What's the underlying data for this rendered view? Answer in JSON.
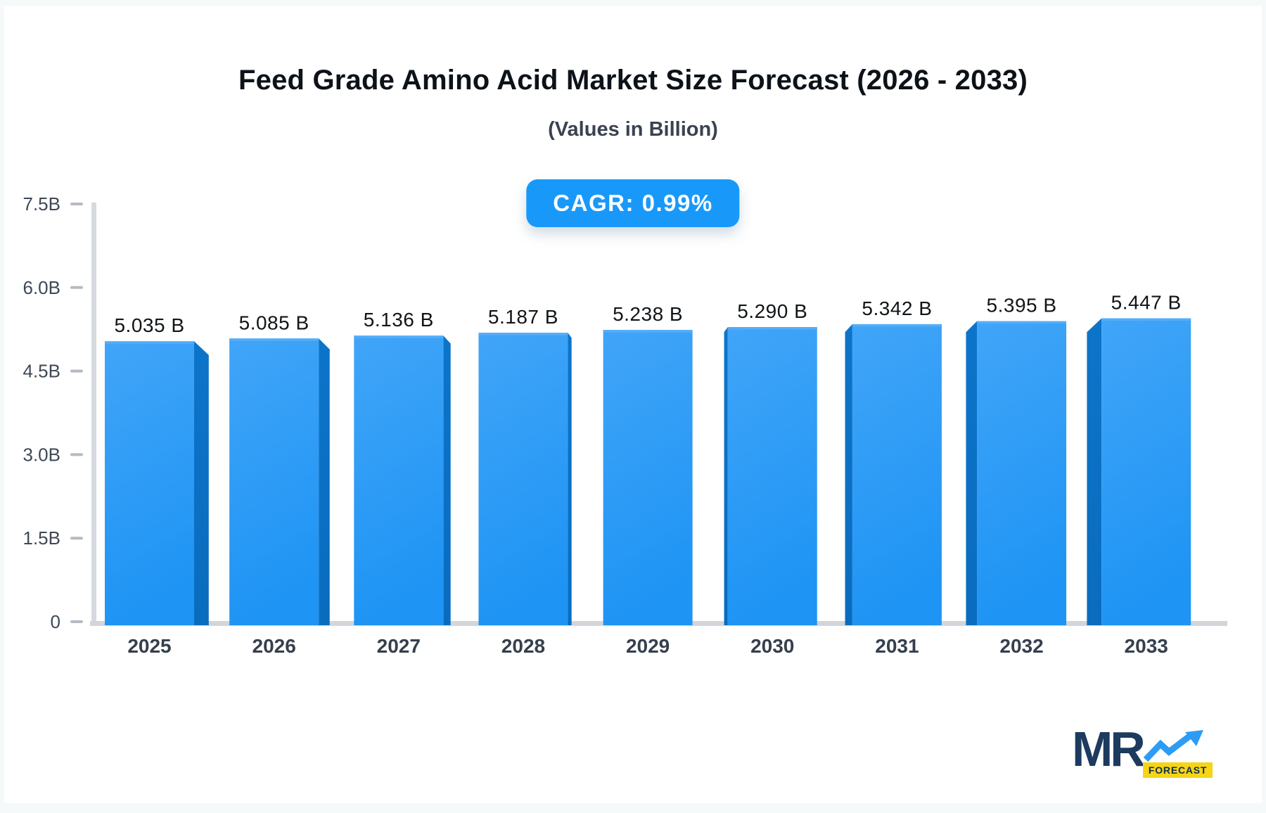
{
  "header": {
    "title": "Feed Grade Amino Acid Market Size Forecast (2026 - 2033)",
    "subtitle": "(Values in Billion)",
    "cagr_label": "CAGR: 0.99%"
  },
  "chart_data": {
    "type": "bar",
    "title": "Feed Grade Amino Acid Market Size Forecast (2026 - 2033)",
    "subtitle": "(Values in Billion)",
    "cagr": "0.99%",
    "categories": [
      "2025",
      "2026",
      "2027",
      "2028",
      "2029",
      "2030",
      "2031",
      "2032",
      "2033"
    ],
    "values": [
      5.035,
      5.085,
      5.136,
      5.187,
      5.238,
      5.29,
      5.342,
      5.395,
      5.447
    ],
    "value_labels": [
      "5.035 B",
      "5.085 B",
      "5.136 B",
      "5.187 B",
      "5.238 B",
      "5.290 B",
      "5.342 B",
      "5.395 B",
      "5.447 B"
    ],
    "ylim": [
      0,
      7.5
    ],
    "yticks": [
      0,
      1.5,
      3.0,
      4.5,
      6.0,
      7.5
    ],
    "ytick_labels": [
      "0",
      "1.5B",
      "3.0B",
      "4.5B",
      "6.0B",
      "7.5B"
    ],
    "grid": false,
    "legend": "none",
    "bar_face_color_top": "#41a5f8",
    "bar_face_color_bottom": "#1e94f4",
    "bar_side_color": "#0b70c5",
    "axis_line_color": "#d6dade",
    "tick_dash_color": "#b4bbc3",
    "tick_label_color": "#3f4856",
    "value_label_color": "#111518",
    "category_label_color": "#363f4c"
  },
  "logo": {
    "brand": "MR",
    "sub": "FORECAST"
  },
  "colors": {
    "badge_bg": "#1899fa",
    "badge_text": "#ffffff",
    "logo_navy": "#1d3a5f",
    "logo_arrow_blue": "#2e9cf3",
    "logo_yellow": "#f6d417"
  }
}
